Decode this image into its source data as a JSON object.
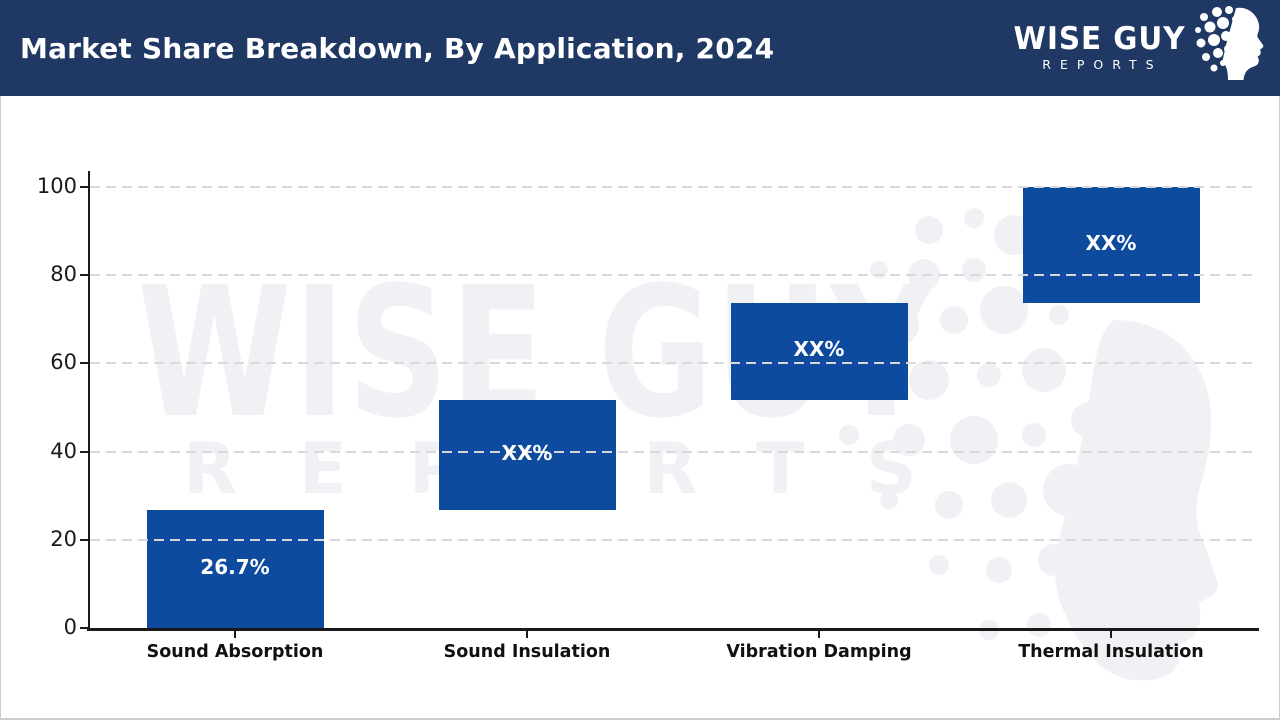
{
  "header": {
    "title": "Market Share Breakdown, By Application, 2024",
    "bg_color": "#1f3864",
    "logo": {
      "line1": "WISE GUY",
      "line2": "REPORTS"
    }
  },
  "watermark": {
    "line1": "WISE GUY",
    "line2": "REPORTS",
    "color": "#f0f1f4"
  },
  "chart_data": {
    "type": "bar",
    "subtype": "waterfall",
    "title": "Market Share Breakdown, By Application, 2024",
    "categories": [
      "Sound Absorption",
      "Sound Insulation",
      "Vibration Damping",
      "Thermal Insulation"
    ],
    "segments": [
      {
        "category": "Sound Absorption",
        "start": 0,
        "end": 26.7,
        "label": "26.7%"
      },
      {
        "category": "Sound Insulation",
        "start": 26.7,
        "end": 51.7,
        "label": "XX%"
      },
      {
        "category": "Vibration Damping",
        "start": 51.7,
        "end": 73.7,
        "label": "XX%"
      },
      {
        "category": "Thermal Insulation",
        "start": 73.7,
        "end": 100,
        "label": "XX%"
      }
    ],
    "yticks": [
      0,
      20,
      40,
      60,
      80,
      100
    ],
    "ylim": [
      0,
      103.5
    ],
    "xlabel": "",
    "ylabel": "",
    "bar_color": "#0e4a9e",
    "grid": "horizontal-dashed",
    "gridline_color": "#d9d9d9",
    "legend": "none"
  }
}
